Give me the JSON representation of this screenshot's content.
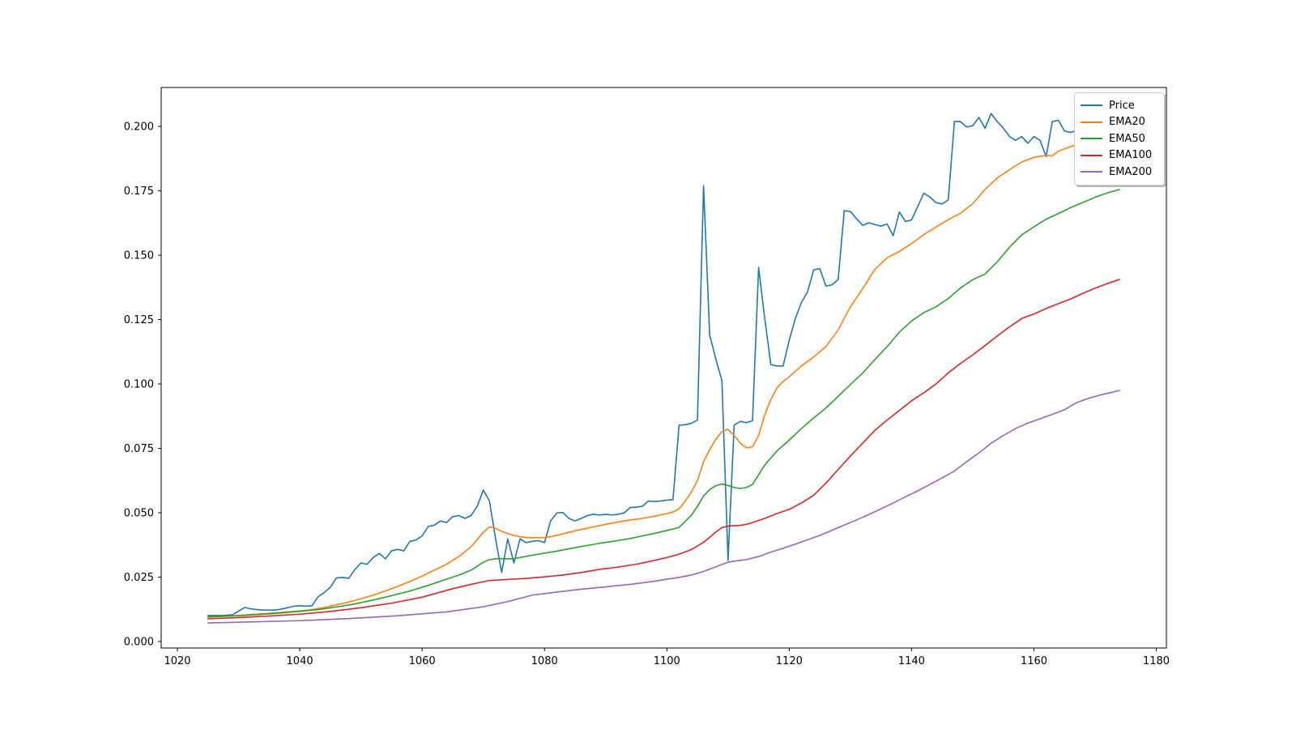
{
  "figure": {
    "background": "#ffffff",
    "plot_background": "#ffffff",
    "spine_color": "#000000"
  },
  "legend": {
    "position": "upper right"
  },
  "chart_data": {
    "type": "line",
    "title": "",
    "xlabel": "",
    "ylabel": "",
    "grid": false,
    "legend_position": "upper right",
    "xlim": [
      1017.35,
      1181.65
    ],
    "ylim": [
      -0.00252,
      0.21514
    ],
    "xticks": {
      "values": [
        1020,
        1040,
        1060,
        1080,
        1100,
        1120,
        1140,
        1160,
        1180
      ],
      "labels": [
        "1020",
        "1040",
        "1060",
        "1080",
        "1100",
        "1120",
        "1140",
        "1160",
        "1180"
      ]
    },
    "yticks": {
      "values": [
        0.0,
        0.025,
        0.05,
        0.075,
        0.1,
        0.125,
        0.15,
        0.175,
        0.2
      ],
      "labels": [
        "0.000",
        "0.025",
        "0.050",
        "0.075",
        "0.100",
        "0.125",
        "0.150",
        "0.175",
        "0.200"
      ]
    },
    "series": [
      {
        "name": "Price",
        "color": "#1f77b4",
        "x_start": 1025,
        "x_step": 1,
        "values": [
          0.0101,
          0.0101,
          0.0101,
          0.0102,
          0.0104,
          0.0118,
          0.0132,
          0.0127,
          0.0124,
          0.0122,
          0.0122,
          0.0122,
          0.0126,
          0.0131,
          0.0137,
          0.0139,
          0.0137,
          0.0139,
          0.0174,
          0.019,
          0.0211,
          0.0247,
          0.0249,
          0.0245,
          0.0279,
          0.0305,
          0.03,
          0.0326,
          0.0342,
          0.0321,
          0.0352,
          0.0358,
          0.0352,
          0.0389,
          0.0394,
          0.041,
          0.0447,
          0.0452,
          0.0468,
          0.0462,
          0.0485,
          0.0489,
          0.0478,
          0.0489,
          0.0525,
          0.0588,
          0.0546,
          0.04,
          0.0268,
          0.0399,
          0.0305,
          0.0399,
          0.0384,
          0.0389,
          0.0392,
          0.0384,
          0.0468,
          0.0499,
          0.0501,
          0.0478,
          0.0468,
          0.0478,
          0.0489,
          0.0494,
          0.0491,
          0.0494,
          0.0491,
          0.0494,
          0.0499,
          0.052,
          0.0522,
          0.0525,
          0.0546,
          0.0543,
          0.0546,
          0.0549,
          0.0551,
          0.084,
          0.0842,
          0.0847,
          0.086,
          0.177,
          0.119,
          0.1097,
          0.1013,
          0.0315,
          0.084,
          0.0855,
          0.085,
          0.0857,
          0.1453,
          0.1254,
          0.1075,
          0.107,
          0.107,
          0.117,
          0.1254,
          0.1317,
          0.1358,
          0.1443,
          0.1448,
          0.138,
          0.1385,
          0.1406,
          0.1673,
          0.167,
          0.1642,
          0.1616,
          0.1626,
          0.1619,
          0.1613,
          0.1621,
          0.1576,
          0.1668,
          0.1631,
          0.1637,
          0.1689,
          0.1741,
          0.1726,
          0.1704,
          0.1699,
          0.1715,
          0.2019,
          0.2019,
          0.1998,
          0.2003,
          0.2035,
          0.1993,
          0.205,
          0.2019,
          0.1993,
          0.1961,
          0.1946,
          0.1961,
          0.1935,
          0.1961,
          0.1946,
          0.1883,
          0.2019,
          0.2024,
          0.1982,
          0.1977,
          0.1985,
          0.2,
          0.1992,
          0.2005,
          0.199,
          0.2,
          0.1988,
          0.1975
        ]
      },
      {
        "name": "EMA20",
        "color": "#ff7f0e",
        "x": [
          1025,
          1028,
          1031,
          1034,
          1037,
          1040,
          1042,
          1044,
          1046,
          1048,
          1050,
          1052,
          1054,
          1056,
          1058,
          1060,
          1062,
          1064,
          1066,
          1068,
          1070,
          1071,
          1072,
          1073,
          1074,
          1075,
          1076,
          1077,
          1078,
          1079,
          1080,
          1081,
          1082,
          1084,
          1086,
          1088,
          1090,
          1092,
          1094,
          1096,
          1098,
          1100,
          1101,
          1102,
          1103,
          1104,
          1105,
          1106,
          1107,
          1108,
          1109,
          1110,
          1111,
          1112,
          1113,
          1114,
          1115,
          1116,
          1117,
          1118,
          1119,
          1120,
          1122,
          1124,
          1126,
          1128,
          1130,
          1132,
          1134,
          1136,
          1138,
          1140,
          1142,
          1144,
          1146,
          1148,
          1150,
          1152,
          1154,
          1156,
          1158,
          1160,
          1162,
          1163,
          1164,
          1166,
          1168,
          1170,
          1172,
          1174
        ],
        "values": [
          0.0094,
          0.0098,
          0.0103,
          0.0108,
          0.0113,
          0.0119,
          0.0124,
          0.0132,
          0.0142,
          0.0153,
          0.0166,
          0.018,
          0.0196,
          0.0214,
          0.0233,
          0.0254,
          0.0277,
          0.03,
          0.033,
          0.0368,
          0.0424,
          0.0445,
          0.044,
          0.0428,
          0.0419,
          0.0412,
          0.0407,
          0.0404,
          0.0403,
          0.0403,
          0.0404,
          0.0407,
          0.0412,
          0.0424,
          0.0435,
          0.0445,
          0.0455,
          0.0464,
          0.0472,
          0.0478,
          0.0487,
          0.0497,
          0.0503,
          0.0515,
          0.0545,
          0.058,
          0.0625,
          0.0698,
          0.0745,
          0.0785,
          0.0815,
          0.0824,
          0.08,
          0.077,
          0.0752,
          0.0756,
          0.08,
          0.088,
          0.094,
          0.0985,
          0.101,
          0.1028,
          0.107,
          0.1105,
          0.1145,
          0.121,
          0.13,
          0.137,
          0.1445,
          0.149,
          0.1515,
          0.1545,
          0.158,
          0.161,
          0.1638,
          0.1663,
          0.17,
          0.1755,
          0.18,
          0.1832,
          0.1862,
          0.188,
          0.1888,
          0.1886,
          0.1904,
          0.1922,
          0.1938,
          0.195,
          0.1958,
          0.1962
        ]
      },
      {
        "name": "EMA50",
        "color": "#2ca02c",
        "x": [
          1025,
          1030,
          1035,
          1040,
          1043,
          1046,
          1049,
          1052,
          1055,
          1058,
          1061,
          1064,
          1066,
          1068,
          1070,
          1071,
          1072,
          1073,
          1074,
          1075,
          1076,
          1078,
          1080,
          1082,
          1084,
          1086,
          1088,
          1090,
          1092,
          1094,
          1096,
          1098,
          1100,
          1102,
          1104,
          1105,
          1106,
          1107,
          1108,
          1109,
          1110,
          1111,
          1112,
          1113,
          1114,
          1116,
          1118,
          1120,
          1122,
          1124,
          1126,
          1128,
          1130,
          1132,
          1134,
          1136,
          1138,
          1140,
          1142,
          1144,
          1146,
          1148,
          1150,
          1152,
          1154,
          1156,
          1158,
          1160,
          1162,
          1164,
          1166,
          1168,
          1170,
          1172,
          1174
        ],
        "values": [
          0.0096,
          0.01,
          0.0107,
          0.0117,
          0.0124,
          0.0134,
          0.0146,
          0.0161,
          0.0178,
          0.0196,
          0.0218,
          0.0242,
          0.0258,
          0.0277,
          0.0308,
          0.0318,
          0.0321,
          0.0322,
          0.0321,
          0.0322,
          0.0326,
          0.0335,
          0.0343,
          0.0351,
          0.036,
          0.0369,
          0.0377,
          0.0385,
          0.0392,
          0.04,
          0.041,
          0.042,
          0.0431,
          0.0443,
          0.049,
          0.0525,
          0.0565,
          0.059,
          0.0605,
          0.0612,
          0.0606,
          0.0598,
          0.0594,
          0.0598,
          0.061,
          0.0685,
          0.074,
          0.0782,
          0.0827,
          0.0868,
          0.0907,
          0.0952,
          0.0998,
          0.1042,
          0.1095,
          0.1145,
          0.1201,
          0.1245,
          0.1277,
          0.13,
          0.1332,
          0.1373,
          0.1405,
          0.1427,
          0.1474,
          0.1531,
          0.1579,
          0.161,
          0.164,
          0.1662,
          0.1685,
          0.1705,
          0.1725,
          0.1742,
          0.1755
        ]
      },
      {
        "name": "EMA100",
        "color": "#d62728",
        "x": [
          1025,
          1030,
          1035,
          1040,
          1045,
          1050,
          1055,
          1060,
          1065,
          1068,
          1071,
          1074,
          1077,
          1080,
          1083,
          1086,
          1089,
          1092,
          1095,
          1098,
          1100,
          1102,
          1104,
          1106,
          1108,
          1109,
          1110,
          1111,
          1112,
          1113,
          1114,
          1116,
          1118,
          1120,
          1122,
          1124,
          1126,
          1128,
          1130,
          1132,
          1134,
          1136,
          1138,
          1140,
          1142,
          1144,
          1146,
          1148,
          1150,
          1152,
          1154,
          1156,
          1158,
          1160,
          1162,
          1164,
          1166,
          1168,
          1170,
          1172,
          1174
        ],
        "values": [
          0.0088,
          0.0093,
          0.0099,
          0.0106,
          0.0117,
          0.0131,
          0.0149,
          0.0172,
          0.0205,
          0.0222,
          0.0237,
          0.0241,
          0.0245,
          0.0251,
          0.0258,
          0.0268,
          0.028,
          0.0289,
          0.03,
          0.0315,
          0.0326,
          0.0339,
          0.0357,
          0.0385,
          0.0425,
          0.0442,
          0.0448,
          0.045,
          0.0451,
          0.0455,
          0.0462,
          0.0478,
          0.0497,
          0.0513,
          0.0538,
          0.0568,
          0.0615,
          0.0668,
          0.072,
          0.077,
          0.082,
          0.086,
          0.0897,
          0.0935,
          0.0966,
          0.1,
          0.1043,
          0.108,
          0.1113,
          0.1149,
          0.1186,
          0.1222,
          0.1254,
          0.1272,
          0.1293,
          0.1312,
          0.133,
          0.1352,
          0.1372,
          0.139,
          0.1406
        ]
      },
      {
        "name": "EMA200",
        "color": "#9467bd",
        "x": [
          1025,
          1032,
          1040,
          1048,
          1056,
          1064,
          1070,
          1074,
          1078,
          1082,
          1086,
          1090,
          1094,
          1098,
          1100,
          1102,
          1104,
          1106,
          1108,
          1110,
          1111,
          1112,
          1113,
          1115,
          1117,
          1119,
          1121,
          1123,
          1125,
          1127,
          1129,
          1131,
          1133,
          1135,
          1137,
          1139,
          1141,
          1143,
          1145,
          1147,
          1149,
          1151,
          1153,
          1155,
          1157,
          1159,
          1161,
          1163,
          1165,
          1167,
          1169,
          1171,
          1174
        ],
        "values": [
          0.0072,
          0.0076,
          0.0081,
          0.0089,
          0.01,
          0.0115,
          0.0135,
          0.0155,
          0.018,
          0.0192,
          0.0203,
          0.0212,
          0.0222,
          0.0234,
          0.0242,
          0.0249,
          0.0258,
          0.0272,
          0.029,
          0.0308,
          0.0312,
          0.0315,
          0.0318,
          0.033,
          0.0347,
          0.0362,
          0.0378,
          0.0395,
          0.0412,
          0.0432,
          0.0452,
          0.0472,
          0.0493,
          0.0515,
          0.0538,
          0.0562,
          0.0585,
          0.061,
          0.0635,
          0.0662,
          0.0698,
          0.0732,
          0.077,
          0.08,
          0.0827,
          0.0848,
          0.0865,
          0.0882,
          0.09,
          0.0928,
          0.0945,
          0.0958,
          0.0975
        ]
      }
    ]
  }
}
